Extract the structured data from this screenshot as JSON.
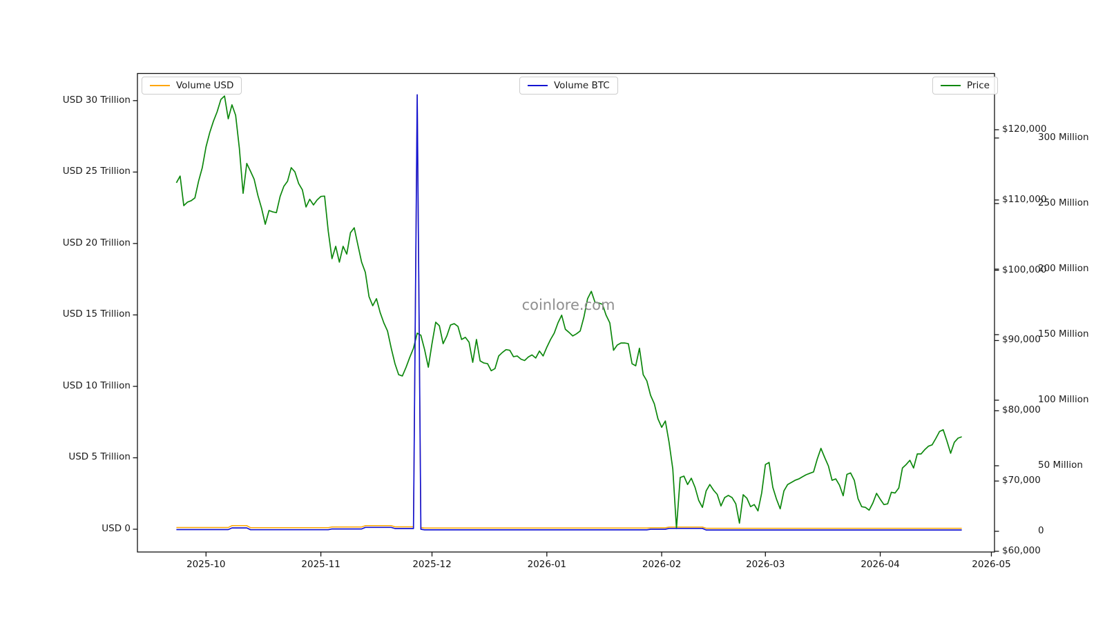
{
  "page": {
    "background": "#ffffff",
    "watermark": "coinlore.com"
  },
  "legends": [
    {
      "label": "Volume USD",
      "color": "#ffa500"
    },
    {
      "label": "Volume BTC",
      "color": "#1313d2"
    },
    {
      "label": "Price",
      "color": "#0c870c"
    }
  ],
  "chart_data": {
    "type": "line",
    "title": "",
    "watermark": "coinlore.com",
    "grid": false,
    "legend_positions": [
      "top-left",
      "top-center",
      "top-right"
    ],
    "x": {
      "start_date": "2025-09-23",
      "end_date": "2026-04-22",
      "interval": "daily",
      "axis_range": [
        "2025-09-22",
        "2026-05-01"
      ],
      "tick_labels": [
        "2025-10",
        "2025-11",
        "2025-12",
        "2026-01",
        "2026-02",
        "2026-03",
        "2026-04",
        "2026-05"
      ],
      "tick_day_offsets": [
        8,
        39,
        69,
        100,
        131,
        159,
        190,
        220
      ]
    },
    "axes": {
      "volume_usd_left": {
        "unit": "Trillion USD",
        "range": [
          0,
          31.9
        ],
        "tick_values": [
          30,
          25,
          20,
          15,
          10,
          5,
          0
        ],
        "tick_labels": [
          "USD 30 Trillion",
          "USD 25 Trillion",
          "USD 20 Trillion",
          "USD 15 Trillion",
          "USD 10 Trillion",
          "USD 5 Trillion",
          "USD 0"
        ]
      },
      "price_right": {
        "unit": "USD",
        "range": [
          60000,
          128000
        ],
        "tick_values": [
          120000,
          110000,
          100000,
          90000,
          80000,
          70000,
          60000
        ],
        "tick_labels": [
          "$120,000",
          "$110,000",
          "$100,000",
          "$90,000",
          "$80,000",
          "$70,000",
          "$60,000"
        ]
      },
      "volume_btc_far_right": {
        "unit": "Million BTC",
        "range": [
          0,
          348
        ],
        "tick_values": [
          300,
          250,
          200,
          150,
          100,
          50,
          0
        ],
        "tick_labels": [
          "300 Million",
          "250 Million",
          "200 Million",
          "150 Million",
          "100 Million",
          "50 Million",
          "0"
        ]
      }
    },
    "series": [
      {
        "name": "Volume USD",
        "color": "#ffa500",
        "axis": "trillion",
        "format": "rle",
        "runs": [
          [
            15,
            0.12
          ],
          [
            5,
            0.25
          ],
          [
            22,
            0.11
          ],
          [
            9,
            0.16
          ],
          [
            8,
            0.25
          ],
          [
            6,
            0.17
          ],
          [
            1,
            30.4
          ],
          [
            1,
            0.12
          ],
          [
            61,
            0.08
          ],
          [
            5,
            0.1
          ],
          [
            10,
            0.15
          ],
          [
            70,
            0.07
          ]
        ]
      },
      {
        "name": "Volume BTC",
        "color": "#1313d2",
        "axis": "million",
        "format": "rle",
        "runs": [
          [
            15,
            1.3
          ],
          [
            5,
            2.6
          ],
          [
            22,
            1.2
          ],
          [
            9,
            1.8
          ],
          [
            8,
            3.0
          ],
          [
            6,
            2.1
          ],
          [
            1,
            333
          ],
          [
            1,
            1.6
          ],
          [
            61,
            1.1
          ],
          [
            5,
            1.6
          ],
          [
            10,
            2.2
          ],
          [
            70,
            1.0
          ]
        ]
      },
      {
        "name": "Price",
        "color": "#0c870c",
        "axis": "price",
        "format": "values",
        "values": [
          112450,
          113400,
          109200,
          109700,
          109900,
          110300,
          112700,
          114600,
          117550,
          119600,
          121200,
          122550,
          124300,
          124800,
          121550,
          123550,
          122050,
          117350,
          110950,
          115200,
          114100,
          112950,
          110650,
          108800,
          106550,
          108500,
          108300,
          108200,
          110500,
          111950,
          112650,
          114600,
          114000,
          112350,
          111450,
          109000,
          110100,
          109300,
          110000,
          110500,
          110550,
          105550,
          101650,
          103400,
          101150,
          103400,
          102300,
          105350,
          106050,
          103600,
          101150,
          99700,
          96250,
          94950,
          95950,
          94000,
          92500,
          91350,
          88900,
          86700,
          85150,
          84950,
          86200,
          87600,
          88900,
          91050,
          90750,
          88700,
          86200,
          89550,
          92600,
          92100,
          89550,
          90650,
          92200,
          92400,
          92000,
          90150,
          90450,
          89750,
          86900,
          90150,
          87100,
          86800,
          86700,
          85700,
          86000,
          87800,
          88300,
          88700,
          88600,
          87700,
          87800,
          87350,
          87150,
          87650,
          87950,
          87500,
          88500,
          87800,
          89050,
          90150,
          91050,
          92500,
          93600,
          91600,
          91150,
          90650,
          90950,
          91350,
          93300,
          95950,
          97000,
          95450,
          95350,
          95150,
          93600,
          92500,
          88600,
          89350,
          89650,
          89650,
          89550,
          86700,
          86400,
          88900,
          85150,
          84250,
          82200,
          81000,
          78850,
          77650,
          78550,
          75500,
          71700,
          63250,
          70500,
          70700,
          69500,
          70400,
          69100,
          67250,
          66250,
          68600,
          69500,
          68700,
          68100,
          66450,
          67650,
          67950,
          67650,
          66750,
          64000,
          68050,
          67550,
          66350,
          66650,
          65750,
          68300,
          72350,
          72650,
          69100,
          67400,
          66050,
          68600,
          69500,
          69800,
          70100,
          70300,
          70600,
          70900,
          71100,
          71300,
          73150,
          74650,
          73350,
          72150,
          70100,
          70300,
          69400,
          67900,
          70950,
          71150,
          70100,
          67500,
          66350,
          66250,
          65850,
          66850,
          68250,
          67400,
          66650,
          66750,
          68400,
          68300,
          69000,
          71850,
          72350,
          72950,
          71850,
          73850,
          73850,
          74450,
          74950,
          75150,
          76050,
          77050,
          77300,
          75700,
          73950,
          75500,
          76100,
          76300
        ]
      }
    ]
  }
}
